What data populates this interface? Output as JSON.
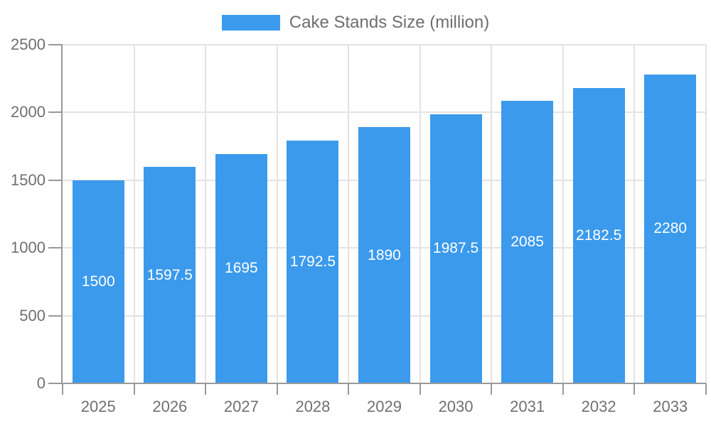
{
  "legend": {
    "label": "Cake Stands Size (million)"
  },
  "colors": {
    "bar": "#3b9aec",
    "axis": "#999999",
    "grid": "#e3e3e3",
    "axis_text": "#707070",
    "legend_text": "#6e6e6e",
    "bar_label": "#ffffff",
    "background": "#ffffff"
  },
  "chart_data": {
    "type": "bar",
    "title": "Cake Stands Size (million)",
    "series_name": "Cake Stands Size (million)",
    "categories": [
      "2025",
      "2026",
      "2027",
      "2028",
      "2029",
      "2030",
      "2031",
      "2032",
      "2033"
    ],
    "values": [
      1500,
      1597.5,
      1695,
      1792.5,
      1890,
      1987.5,
      2085,
      2182.5,
      2280
    ],
    "value_labels": [
      "1500",
      "1597.5",
      "1695",
      "1792.5",
      "1890",
      "1987.5",
      "2085",
      "2182.5",
      "2280"
    ],
    "xlabel": "",
    "ylabel": "",
    "ylim": [
      0,
      2500
    ],
    "yticks": [
      0,
      500,
      1000,
      1500,
      2000,
      2500
    ],
    "ytick_labels": [
      "0",
      "500",
      "1000",
      "1500",
      "2000",
      "2500"
    ],
    "grid": true,
    "legend_position": "top",
    "bar_labels_position": "inside-center"
  }
}
